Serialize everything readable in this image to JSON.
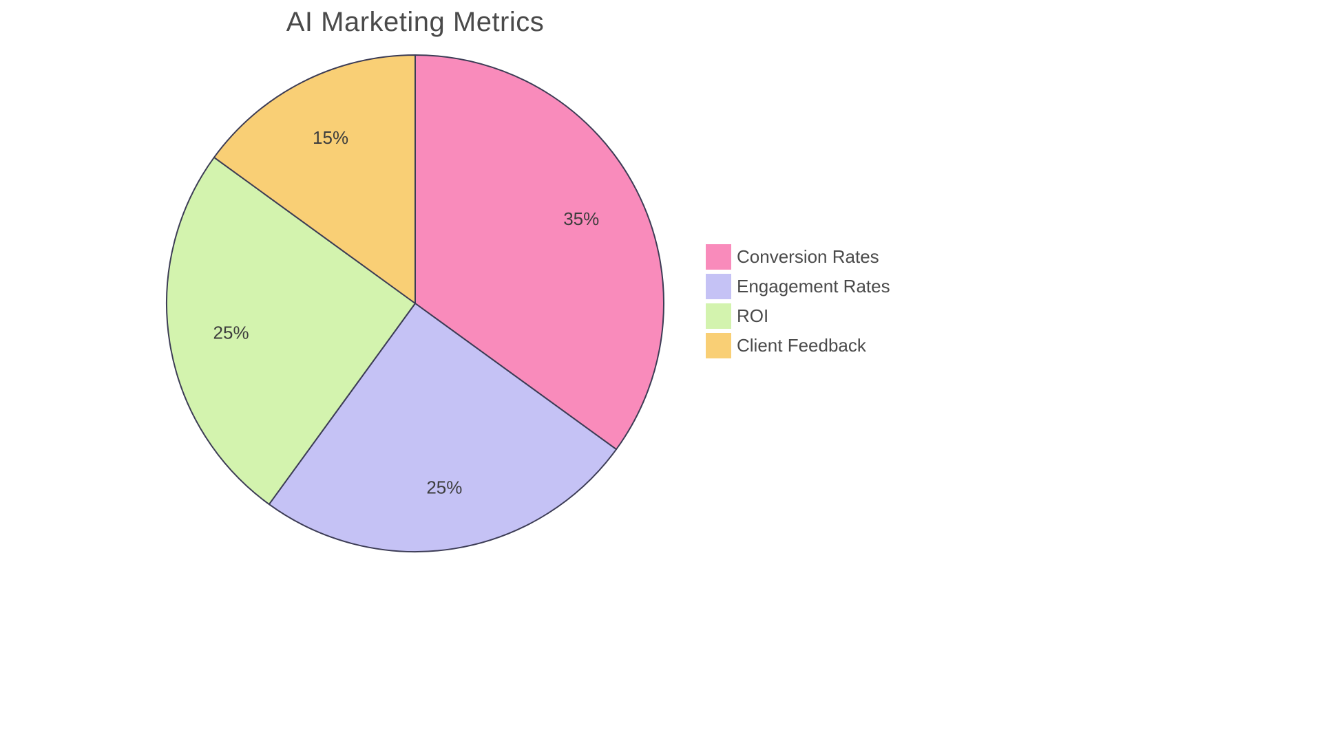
{
  "chart_data": {
    "type": "pie",
    "title": "AI Marketing Metrics",
    "labels": [
      "Conversion Rates",
      "Engagement Rates",
      "ROI",
      "Client Feedback"
    ],
    "values": [
      35,
      25,
      25,
      15
    ],
    "slice_labels": [
      "35%",
      "25%",
      "25%",
      "15%"
    ],
    "colors": [
      "#F98BBB",
      "#C5C2F5",
      "#D3F3AE",
      "#F9CF75"
    ],
    "stroke_color": "#3C3C55",
    "slice_label_color": "#3D3D3D",
    "legend_text_color": "#4A4A4A",
    "background": "#FFFFFF",
    "start_angle_deg": -90,
    "direction": "clockwise",
    "legend_position": "right",
    "grid": false
  }
}
